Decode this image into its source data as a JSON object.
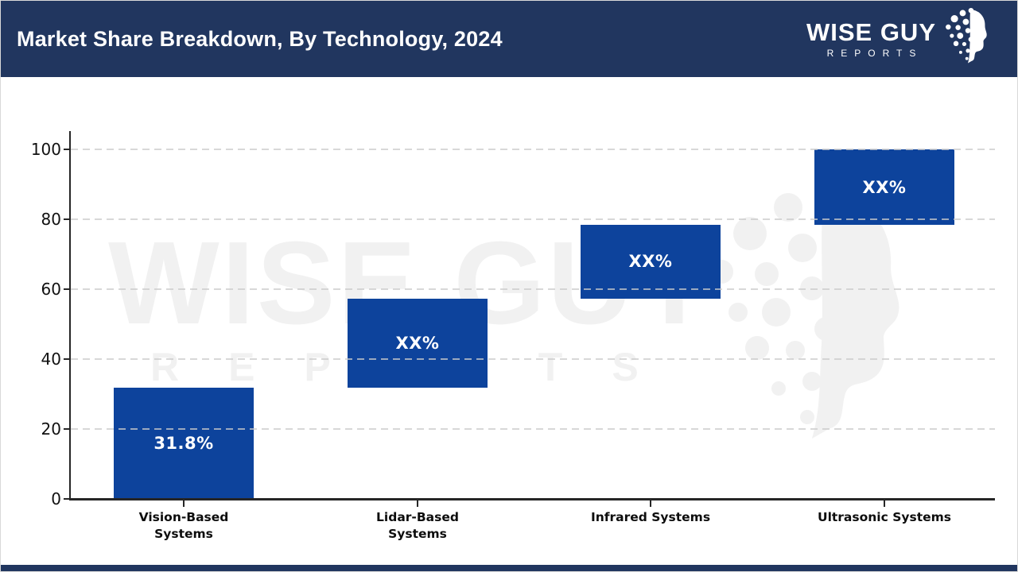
{
  "header": {
    "title": "Market Share Breakdown, By Technology, 2024",
    "logo": {
      "name": "WISE GUY",
      "tagline": "REPORTS"
    }
  },
  "watermark": {
    "name": "WISE GUY",
    "tagline": "REPORTS"
  },
  "colors": {
    "header_bg": "#21365f",
    "bar_fill": "#0d439c",
    "bar_label_text": "#ffffff",
    "grid_line": "#cbcbcb",
    "axis_line": "#262626",
    "watermark": "#f1f1f1",
    "footer_bar": "#21365f"
  },
  "chart_data": {
    "type": "bar",
    "subtype": "floating-waterfall",
    "title": "Market Share Breakdown, By Technology, 2024",
    "categories": [
      "Vision-Based\nSystems",
      "Lidar-Based\nSystems",
      "Infrared Systems",
      "Ultrasonic Systems"
    ],
    "series": [
      {
        "name": "Market share (%)",
        "segments": [
          {
            "category": "Vision-Based Systems",
            "start": 0,
            "end": 31.8,
            "label": "31.8%"
          },
          {
            "category": "Lidar-Based Systems",
            "start": 31.8,
            "end": 57.3,
            "label": "XX%"
          },
          {
            "category": "Infrared Systems",
            "start": 57.3,
            "end": 78.4,
            "label": "XX%"
          },
          {
            "category": "Ultrasonic Systems",
            "start": 78.4,
            "end": 100,
            "label": "XX%"
          }
        ]
      }
    ],
    "xlabel": "",
    "ylabel": "",
    "ylim": [
      0,
      100
    ],
    "yticks": [
      0,
      20,
      40,
      60,
      80,
      100
    ],
    "grid": "horizontal-dashed",
    "legend": "none"
  }
}
